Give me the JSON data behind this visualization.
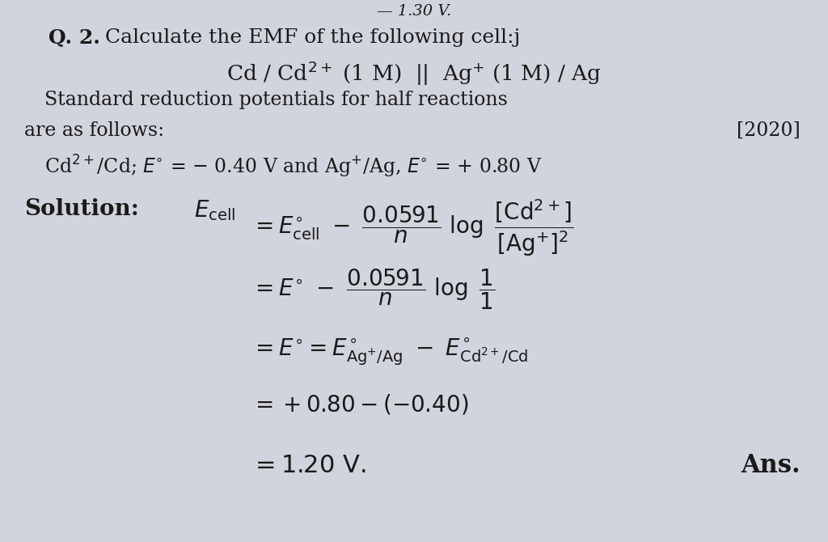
{
  "background_color": "#d0d4dc",
  "text_color": "#1a1a1a",
  "title_top": "— 1.30 V.",
  "question_bold": "Q. 2.",
  "question_text": "Calculate the EMF of the following cell:j",
  "cell_notation": "Cd / Cd$^{2+}$ (1 M)  ||  Ag$^{+}$ (1 M) / Ag",
  "standard_text1": "Standard reduction potentials for half reactions",
  "standard_text2": "are as follows:",
  "year_tag": "[2020]",
  "solution_label": "Solution:",
  "ans": "Ans."
}
